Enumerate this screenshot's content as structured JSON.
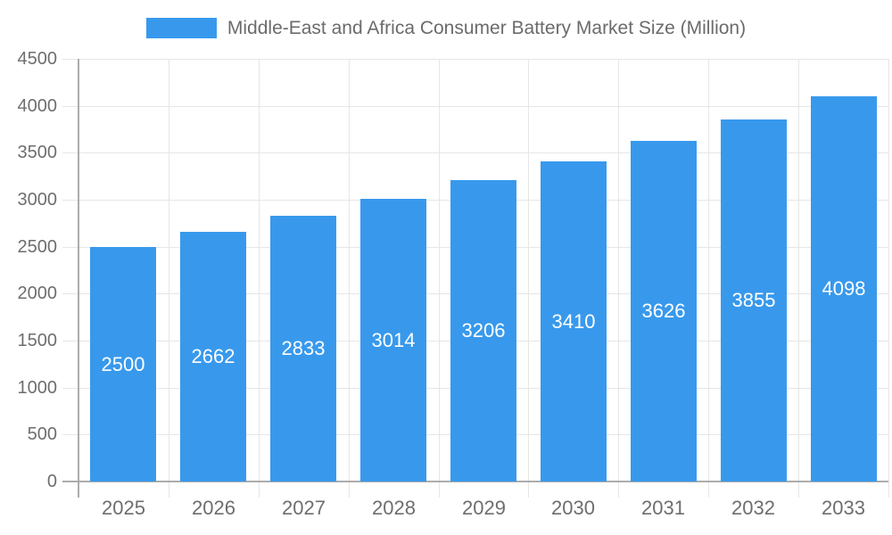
{
  "chart_data": {
    "type": "bar",
    "title": "Middle-East and Africa Consumer Battery Market Size (Million)",
    "legend": {
      "position": "top",
      "label": "Middle-East and Africa Consumer Battery Market Size (Million)"
    },
    "categories": [
      "2025",
      "2026",
      "2027",
      "2028",
      "2029",
      "2030",
      "2031",
      "2032",
      "2033"
    ],
    "series": [
      {
        "name": "Middle-East and Africa Consumer Battery Market Size (Million)",
        "values": [
          2500,
          2662,
          2833,
          3014,
          3206,
          3410,
          3626,
          3855,
          4098
        ]
      }
    ],
    "bar_value_labels": [
      "2500",
      "2662",
      "2833",
      "3014",
      "3206",
      "3410",
      "3626",
      "3855",
      "4098"
    ],
    "xlabel": "",
    "ylabel": "",
    "ylim": [
      0,
      4500
    ],
    "ytick_step": 500,
    "yticks": [
      "0",
      "500",
      "1000",
      "1500",
      "2000",
      "2500",
      "3000",
      "3500",
      "4000",
      "4500"
    ],
    "grid": true,
    "legend_visible": true,
    "colors": {
      "bar": "#3899EC",
      "bar_label": "#FFFFFF",
      "grid_line": "#E6E6E6",
      "zero_line": "#ACACAC",
      "axis_text": "#6E6E6E",
      "legend_text": "#6B6B6B",
      "background": "#FFFFFF"
    }
  }
}
